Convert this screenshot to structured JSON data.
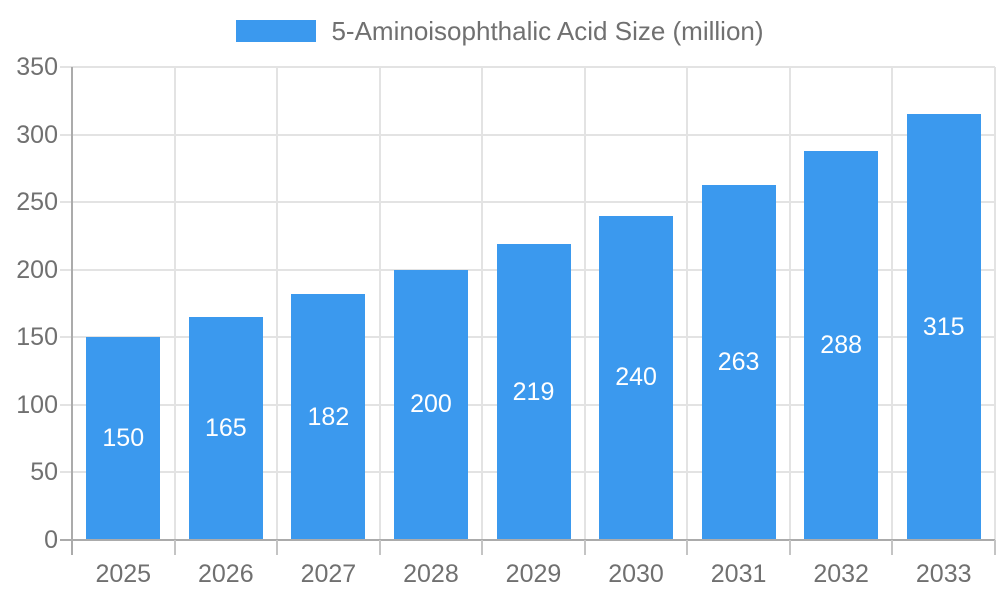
{
  "legend": {
    "label": "5-Aminoisophthalic Acid Size (million)"
  },
  "chart_data": {
    "type": "bar",
    "title": "5-Aminoisophthalic Acid Size (million)",
    "categories": [
      "2025",
      "2026",
      "2027",
      "2028",
      "2029",
      "2030",
      "2031",
      "2032",
      "2033"
    ],
    "series": [
      {
        "name": "5-Aminoisophthalic Acid Size (million)",
        "values": [
          150,
          165,
          182,
          200,
          219,
          240,
          263,
          288,
          315
        ]
      }
    ],
    "xlabel": "",
    "ylabel": "",
    "ylim": [
      0,
      350
    ],
    "ytick_step": 50,
    "ytick_labels": [
      "0",
      "50",
      "100",
      "150",
      "200",
      "250",
      "300",
      "350"
    ],
    "grid": true,
    "legend_position": "top-center",
    "value_labels_shown": true,
    "colors": {
      "bar": "#3B99EE",
      "value_label": "#FFFFFF",
      "axis_text": "#707070",
      "grid": "#E3E3E3",
      "axis_line": "#ABABAB",
      "tick_mark": "#C4C4C4",
      "background": "#FFFFFF"
    }
  }
}
